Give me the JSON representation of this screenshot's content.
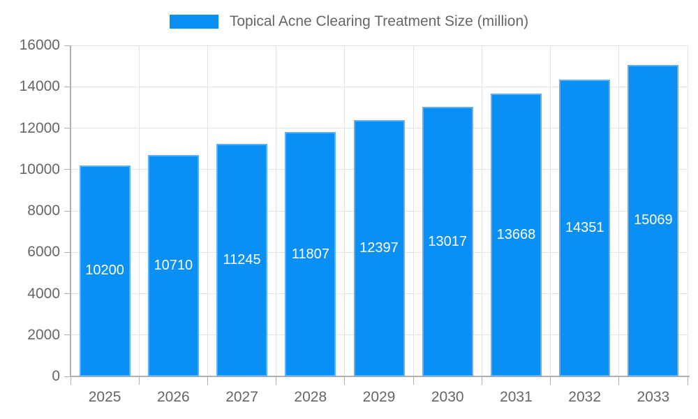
{
  "legend": {
    "label": "Topical Acne Clearing Treatment Size (million)"
  },
  "chart_data": {
    "type": "bar",
    "title": "",
    "xlabel": "",
    "ylabel": "",
    "categories": [
      "2025",
      "2026",
      "2027",
      "2028",
      "2029",
      "2030",
      "2031",
      "2032",
      "2033"
    ],
    "series": [
      {
        "name": "Topical Acne Clearing Treatment Size (million)",
        "values": [
          10200,
          10710,
          11245,
          11807,
          12397,
          13017,
          13668,
          14351,
          15069
        ]
      }
    ],
    "ylim": [
      0,
      16000
    ],
    "ytick_step": 2000,
    "grid": true,
    "legend_position": "top-center",
    "bar_value_labels": "inside-center",
    "colors": {
      "bar_fill": "#0a90f4",
      "bar_border": "#5eb1f7",
      "bar_label_text": "#ffffff",
      "grid_line": "#e3e3e3",
      "axis_line": "#b0b0b0",
      "tick_text": "#666666",
      "background": "#ffffff"
    }
  }
}
